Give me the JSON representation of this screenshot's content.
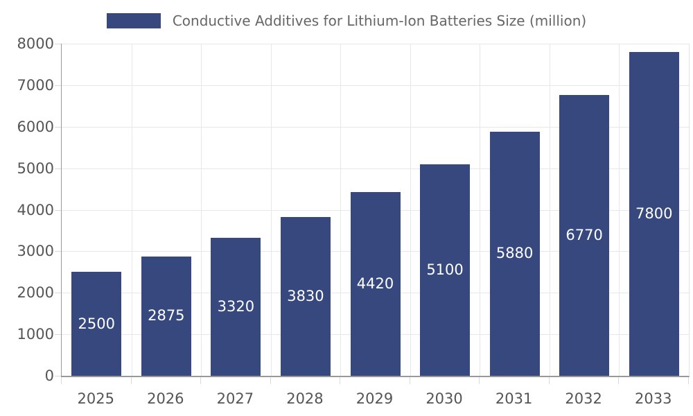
{
  "legend": {
    "label": "Conductive Additives for Lithium-Ion Batteries Size (million)"
  },
  "colors": {
    "bar": "#36487E",
    "bar_label": "#ffffff",
    "grid": "#e7e7e7",
    "axis_spine": "#999999",
    "tick_label": "#555555",
    "legend_text": "#666666",
    "background": "#ffffff"
  },
  "chart_data": {
    "type": "bar",
    "title": "Conductive Additives for Lithium-Ion Batteries Size (million)",
    "categories": [
      "2025",
      "2026",
      "2027",
      "2028",
      "2029",
      "2030",
      "2031",
      "2032",
      "2033"
    ],
    "values": [
      2500,
      2875,
      3320,
      3830,
      4420,
      5100,
      5880,
      6770,
      7800
    ],
    "xlabel": "",
    "ylabel": "",
    "ylim": [
      0,
      8000
    ],
    "ytick_step": 1000,
    "grid": true,
    "legend_position": "top-center",
    "bar_labels_visible": true,
    "bar_label_position": "center"
  }
}
